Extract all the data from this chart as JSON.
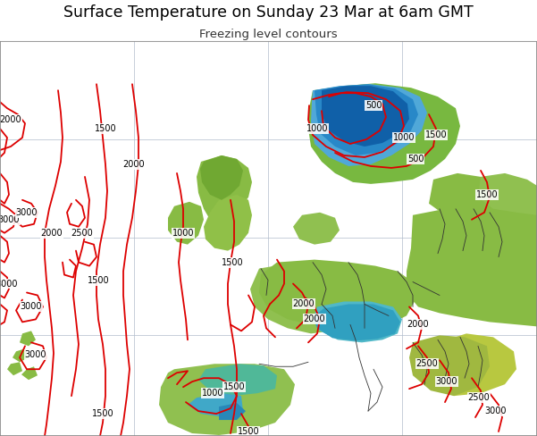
{
  "title": "Surface Temperature on Sunday 23 Mar at 6am GMT",
  "subtitle": "Freezing level contours",
  "title_fontsize": 12.5,
  "subtitle_fontsize": 9.5,
  "bg_color": "#ffffff",
  "map_bg": "#c8d4e8",
  "fig_width": 6.01,
  "fig_height": 4.88,
  "dpi": 100,
  "title_color": "#000000",
  "subtitle_color": "#333333",
  "header_line_color": "#aaaaaa",
  "contour_color": "#dd0000",
  "contour_lw": 1.3,
  "label_fontsize": 7.0,
  "border_color": "#333333",
  "border_lw": 0.6
}
